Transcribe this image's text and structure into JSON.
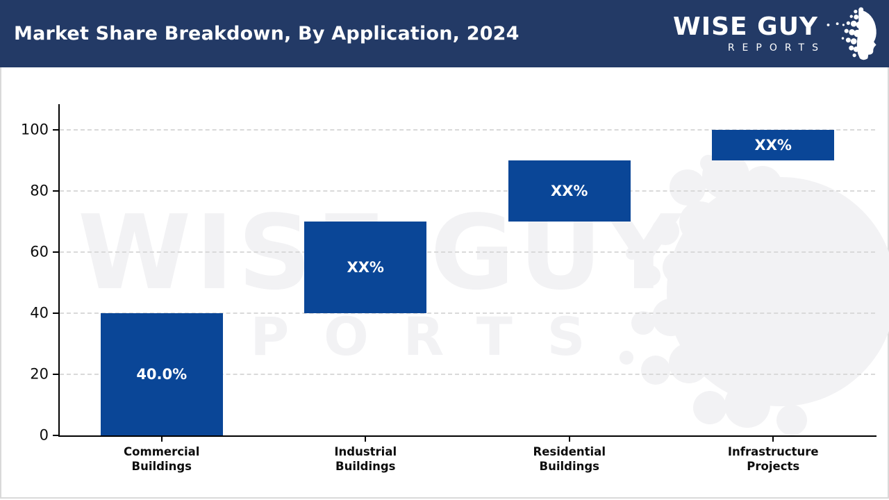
{
  "header": {
    "title": "Market Share Breakdown, By Application, 2024",
    "logo": {
      "name": "WISE GUY",
      "subtext": "REPORTS"
    }
  },
  "watermark": {
    "line1": "WISE GUY",
    "line2": "REPORTS"
  },
  "chart_data": {
    "type": "bar",
    "variant": "waterfall",
    "title": "Market Share Breakdown, By Application, 2024",
    "unit": "percent market share",
    "categories": [
      "Commercial Buildings",
      "Industrial Buildings",
      "Residential Buildings",
      "Infrastructure Projects"
    ],
    "category_tick_lines": [
      [
        "Commercial",
        "Buildings"
      ],
      [
        "Industrial",
        "Buildings"
      ],
      [
        "Residential",
        "Buildings"
      ],
      [
        "Infrastructure",
        "Projects"
      ]
    ],
    "segments": [
      {
        "category": "Commercial Buildings",
        "start": 0,
        "end": 40,
        "value_label": "40.0%"
      },
      {
        "category": "Industrial Buildings",
        "start": 40,
        "end": 70,
        "value_label": "XX%"
      },
      {
        "category": "Residential Buildings",
        "start": 70,
        "end": 90,
        "value_label": "XX%"
      },
      {
        "category": "Infrastructure Projects",
        "start": 90,
        "end": 100,
        "value_label": "XX%"
      }
    ],
    "yticks": [
      0,
      20,
      40,
      60,
      80,
      100
    ],
    "ylim": [
      0,
      108
    ],
    "grid": true,
    "legend": false,
    "colors": {
      "bar": "#0a4697",
      "header_bg": "#233a66",
      "grid_line": "#d9d9d9",
      "axis": "#000000",
      "value_label": "#ffffff",
      "watermark": "#f2f2f4"
    }
  }
}
